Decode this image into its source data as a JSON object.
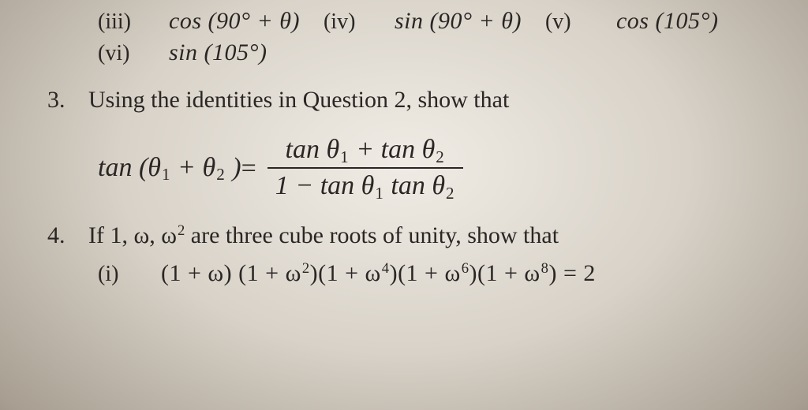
{
  "page": {
    "background_gradient": [
      "#f0ece5",
      "#d8d2c8",
      "#a89f92",
      "#6b6258"
    ],
    "text_color": "#2a2624",
    "font_family": "Times New Roman",
    "body_fontsize_pt": 22
  },
  "top": {
    "items": [
      {
        "label": "(iii)",
        "fn": "cos",
        "arg": "(90° + θ)"
      },
      {
        "label": "(iv)",
        "fn": "sin",
        "arg": "(90° + θ)"
      },
      {
        "label": "(v)",
        "fn": "cos",
        "arg": "(105°)"
      },
      {
        "label": "(vi)",
        "fn": "sin",
        "arg": "(105°)"
      }
    ]
  },
  "q3": {
    "number": "3.",
    "text": "Using the identities in Question 2, show that",
    "formula": {
      "lhs_fn": "tan",
      "lhs_arg_open": "(θ",
      "lhs_sub1": "1",
      "lhs_plus": " + θ",
      "lhs_sub2": "2",
      "lhs_arg_close": " )",
      "eq": " = ",
      "num_a": "tan θ",
      "num_sub1": "1",
      "num_plus": " + tan θ",
      "num_sub2": "2",
      "den_a": "1 − tan θ",
      "den_sub1": "1",
      "den_mid": " tan θ",
      "den_sub2": "2"
    }
  },
  "q4": {
    "number": "4.",
    "text_a": "If 1, ω, ω",
    "text_sup": "2",
    "text_b": " are three cube roots of unity, show that",
    "sub": {
      "label": "(i)",
      "p1": "(1 + ω)",
      "p2_a": "(1 + ω",
      "p2_sup": "2",
      "p2_b": ")",
      "p3_a": "(1 + ω",
      "p3_sup": "4",
      "p3_b": ")",
      "p4_a": "(1 + ω",
      "p4_sup": "6",
      "p4_b": ")",
      "p5_a": "(1 + ω",
      "p5_sup": "8",
      "p5_b": ")",
      "rhs": " = 2"
    }
  }
}
